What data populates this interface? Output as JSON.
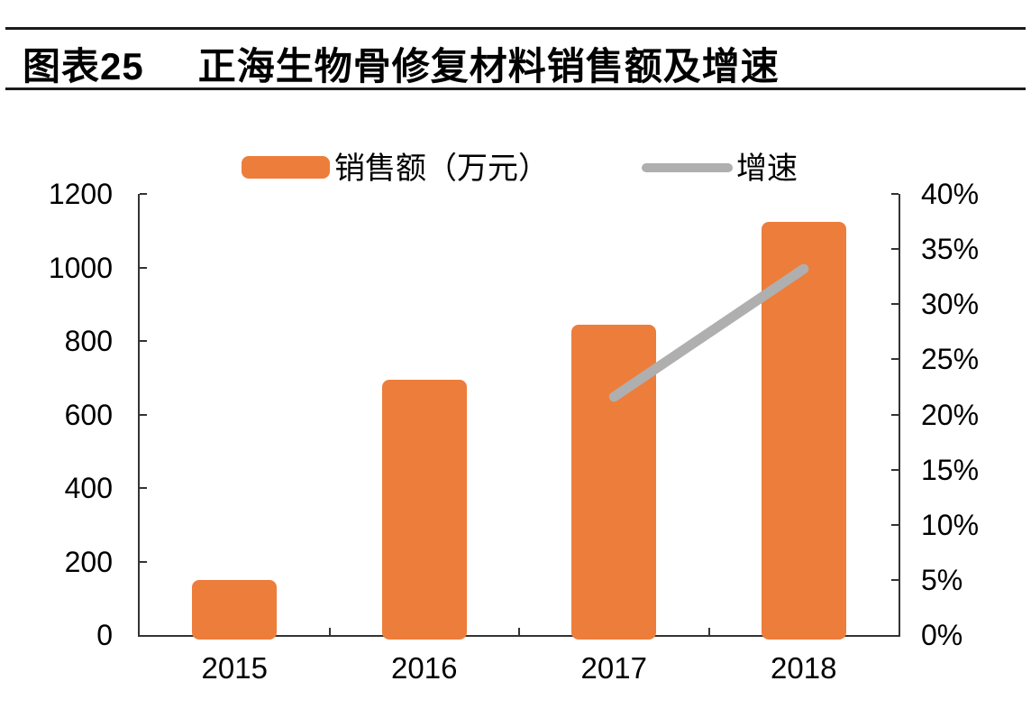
{
  "figure": {
    "label": "图表25",
    "title": "正海生物骨修复材料销售额及增速"
  },
  "legend": {
    "sales_label": "销售额（万元）",
    "growth_label": "增速"
  },
  "colors": {
    "bar": "#ED7D3B",
    "line": "#AFAFAF",
    "axis": "#333333",
    "text": "#000000"
  },
  "chart_data": {
    "type": "bar",
    "title": "正海生物骨修复材料销售额及增速",
    "categories": [
      "2015",
      "2016",
      "2017",
      "2018"
    ],
    "series": [
      {
        "name": "销售额（万元）",
        "type": "bar",
        "axis": "left",
        "values": [
          150,
          695,
          845,
          1125
        ]
      },
      {
        "name": "增速",
        "type": "line",
        "axis": "right",
        "values": [
          null,
          null,
          21.6,
          33.2
        ],
        "unit": "%"
      }
    ],
    "left_axis": {
      "min": 0,
      "max": 1200,
      "step": 200,
      "tick_labels": [
        "0",
        "200",
        "400",
        "600",
        "800",
        "1000",
        "1200"
      ]
    },
    "right_axis": {
      "min": 0,
      "max": 40,
      "step": 5,
      "tick_labels": [
        "0%",
        "5%",
        "10%",
        "15%",
        "20%",
        "25%",
        "30%",
        "35%",
        "40%"
      ]
    },
    "grid": false,
    "legend_position": "top"
  }
}
